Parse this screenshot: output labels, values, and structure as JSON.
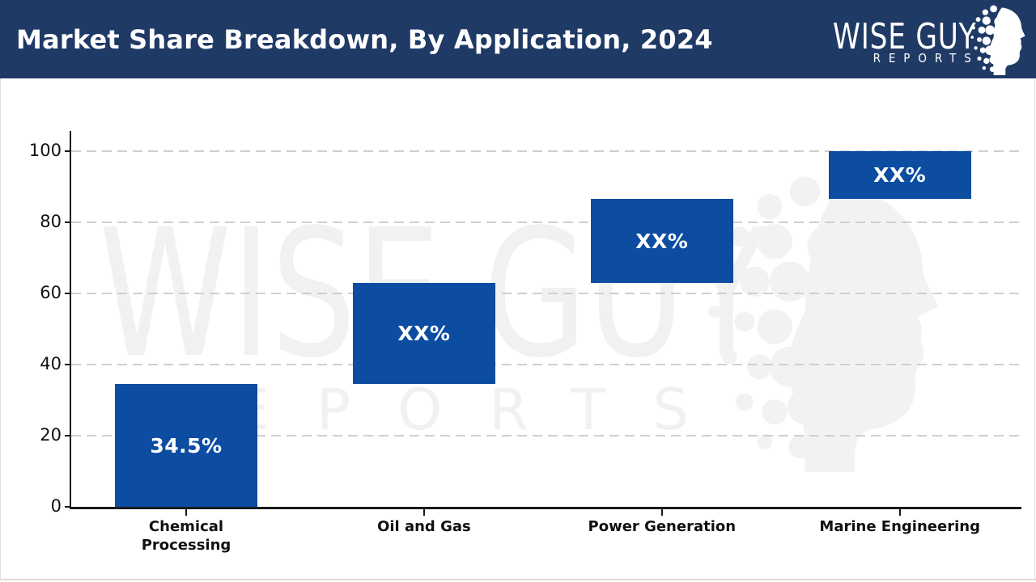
{
  "header": {
    "title": "Market Share Breakdown, By Application, 2024",
    "bg_color": "#203a66",
    "logo": {
      "line1": "WISE GUY",
      "line2": "REPORTS"
    }
  },
  "watermark": {
    "line1": "WISE GUY",
    "line2": "REPORTS"
  },
  "chart_data": {
    "type": "bar",
    "variant": "waterfall",
    "title": "Market Share Breakdown, By Application, 2024",
    "categories": [
      "Chemical Processing",
      "Oil and Gas",
      "Power Generation",
      "Marine Engineering"
    ],
    "categories_display": [
      "Chemical\nProcessing",
      "Oil and Gas",
      "Power Generation",
      "Marine Engineering"
    ],
    "segments": [
      {
        "category": "Chemical Processing",
        "from": 0,
        "to": 34.5,
        "label": "34.5%"
      },
      {
        "category": "Oil and Gas",
        "from": 34.5,
        "to": 63,
        "label": "XX%"
      },
      {
        "category": "Power Generation",
        "from": 63,
        "to": 86.5,
        "label": "XX%"
      },
      {
        "category": "Marine Engineering",
        "from": 86.5,
        "to": 100,
        "label": "XX%"
      }
    ],
    "xlabel": "",
    "ylabel": "",
    "ylim": [
      0,
      100
    ],
    "yticks": [
      0,
      20,
      40,
      60,
      80,
      100
    ],
    "grid": "horizontal-dashed",
    "legend": "none",
    "bar_color": "#0c4da2",
    "label_color": "#ffffff",
    "axis_color": "#1a1a1a",
    "grid_color": "#cfcfcf"
  }
}
